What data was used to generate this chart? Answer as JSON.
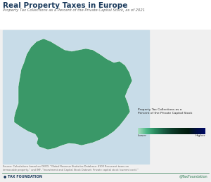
{
  "title": "Real Property Taxes in Europe",
  "subtitle": "Property Tax Collections as a Percent of the Private Capital Stock, as of 2021",
  "source_text": "Source: Calculations based on OECD, \"Global Revenue Statistics Database: 4100 Recurrent taxes on\nimmovable property,\" and IMF, \"Investment and Capital Stock Dataset: Private capital stock (current cost).\"",
  "footer_left": "TAX FOUNDATION",
  "footer_right": "@TaxFoundation",
  "legend_title": "Property Tax Collections as a\nPercent of the Private Capital Stock",
  "legend_lower": "Lower",
  "legend_higher": "Higher",
  "bg_color": "#f0f0f0",
  "ocean_color": "#c8dce8",
  "title_color": "#1a3a5c",
  "subtitle_color": "#666666",
  "border_color": "#ffffff",
  "footer_line_color": "#2a7a50",
  "colormap_colors": [
    "#a8ddc0",
    "#4db888",
    "#2a8c60",
    "#1a6045",
    "#0d3d2a",
    "#062818",
    "#001a0d",
    "#000d40",
    "#000a66"
  ],
  "non_oecd_color": "#c8c8c8",
  "no_data_color": "#e0e0e0",
  "default_non_europe": "#d0d8d0",
  "country_colors": {
    "ISL": "#0d4a30",
    "GBR": "#00205c",
    "IRL": "#2a7055",
    "FRA": "#155038",
    "ESP": "#358060",
    "PRT": "#448878",
    "BEL": "#5aaa80",
    "NLD": "#226640",
    "LUX": "#98d8b0",
    "DEU": "#4a9870",
    "AUT": "#60b888",
    "CHE": "#3d9068",
    "ITA": "#308060",
    "GRC": "#1a6845",
    "POL": "#4a9870",
    "CZE": "#8ecca0",
    "SVK": "#4aaa78",
    "HUN": "#78c098",
    "SVN": "#58a880",
    "HRV": "#c8c8c8",
    "ROU": "#c0c0c0",
    "BGR": "#60b080",
    "LTU": "#5aaa80",
    "LVA": "#3a8868",
    "EST": "#309060",
    "FIN": "#409878",
    "SWE": "#226640",
    "NOR": "#5aaa80",
    "DNK": "#58a880",
    "MLT": "#c8c8c8",
    "CYP": "#d8d8d8",
    "TUR": "#60b080",
    "MKD": "#c8c8c8",
    "SRB": "#c8c8c8",
    "ALB": "#c8c8c8",
    "BIH": "#c8c8c8",
    "MNE": "#c8c8c8",
    "MDA": "#c8c8c8",
    "XKX": "#c8c8c8",
    "UKR": "#b8c8b8",
    "BLR": "#b8c8b8",
    "RUS": "#b0c0b0"
  },
  "map_extent": [
    -28,
    47,
    27,
    72
  ],
  "map_central_lon": 12,
  "map_central_lat": 50,
  "map_std_parallels": [
    35,
    65
  ]
}
